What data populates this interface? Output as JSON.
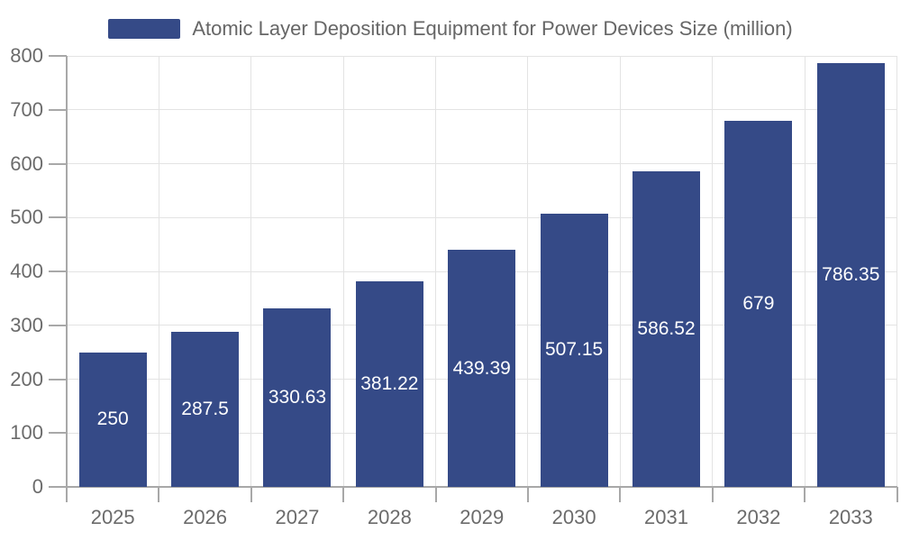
{
  "legend": {
    "label": "Atomic Layer Deposition Equipment for Power Devices Size (million)"
  },
  "colors": {
    "bar": "#354A87",
    "grid": "#e3e3e3",
    "axis": "#a8a8a8",
    "tick_label": "#6b6b6b",
    "legend_label": "#666666",
    "value_label": "#ffffff",
    "background": "#ffffff"
  },
  "chart_data": {
    "type": "bar",
    "title": "Atomic Layer Deposition Equipment for Power Devices Size (million)",
    "categories": [
      "2025",
      "2026",
      "2027",
      "2028",
      "2029",
      "2030",
      "2031",
      "2032",
      "2033"
    ],
    "values": [
      250,
      287.5,
      330.63,
      381.22,
      439.39,
      507.15,
      586.52,
      679,
      786.35
    ],
    "value_labels": [
      "250",
      "287.5",
      "330.63",
      "381.22",
      "439.39",
      "507.15",
      "586.52",
      "679",
      "786.35"
    ],
    "xlabel": "",
    "ylabel": "",
    "ylim": [
      0,
      800
    ],
    "ytick_interval": 100,
    "ytick_labels": [
      "0",
      "100",
      "200",
      "300",
      "400",
      "500",
      "600",
      "700",
      "800"
    ],
    "grid": true,
    "value_label_position": "inside-center",
    "legend_position": "top-center"
  }
}
